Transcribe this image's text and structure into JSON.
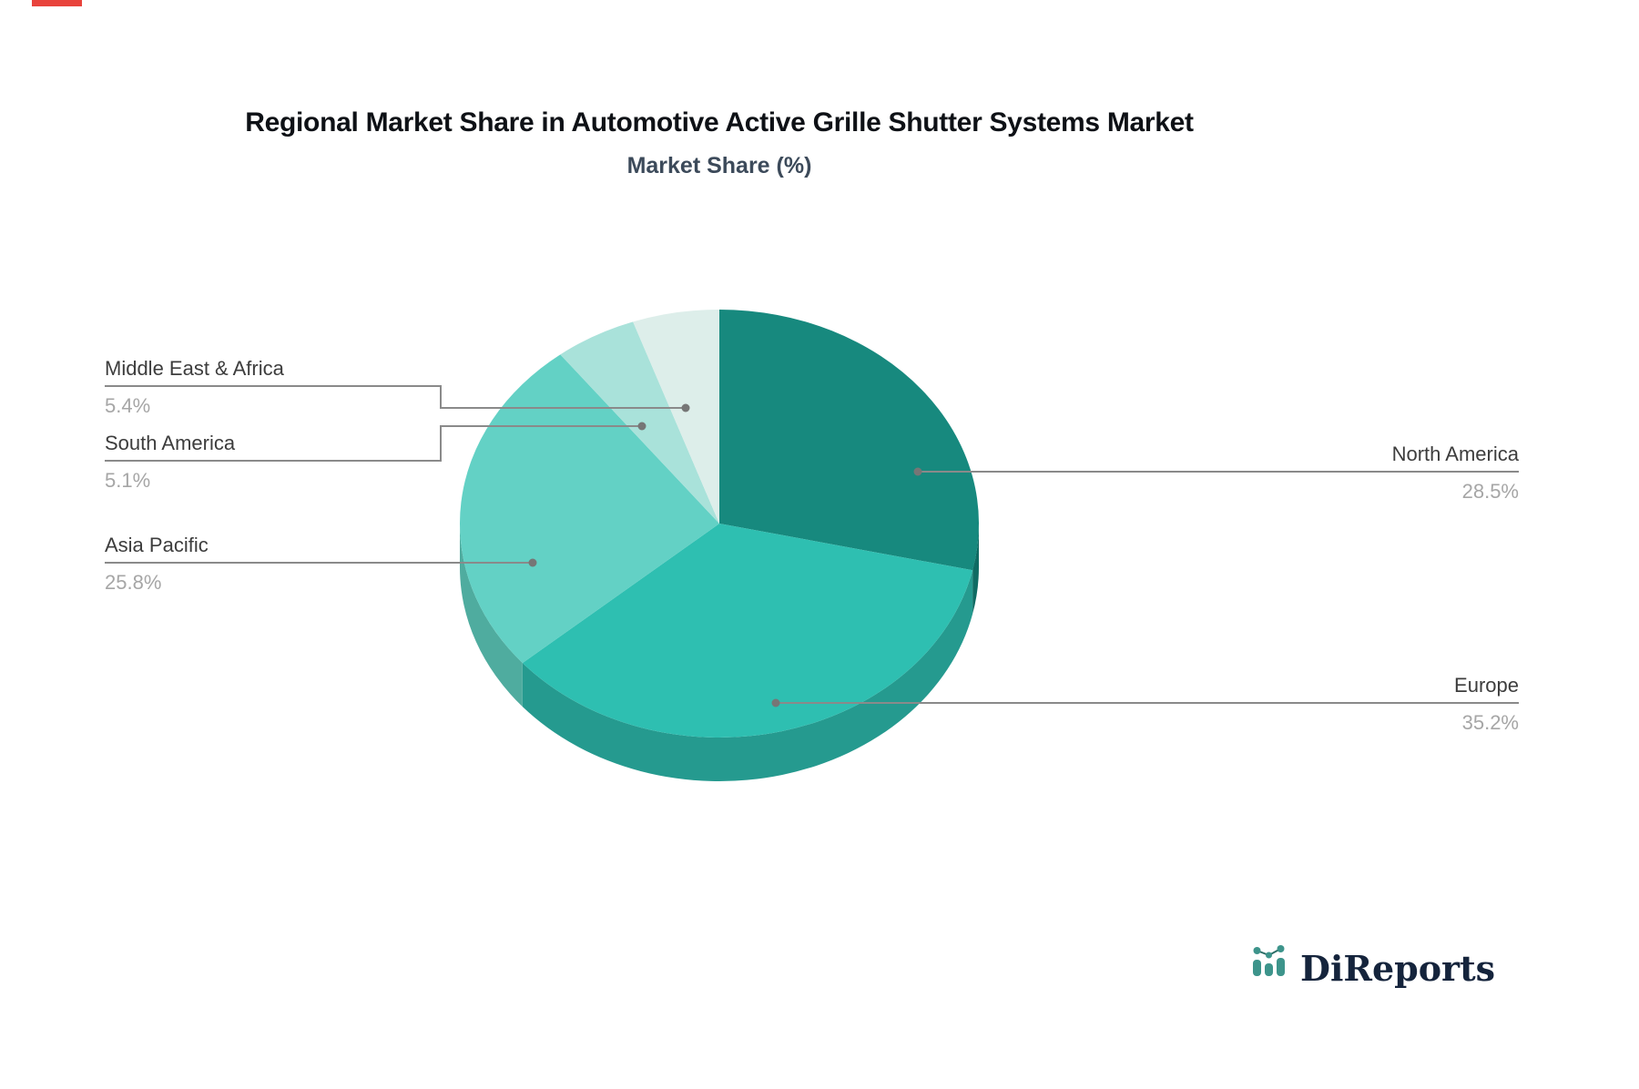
{
  "page": {
    "background": "#FFFFFF"
  },
  "chart_data": {
    "type": "pie",
    "style": "3d-pie",
    "title": "Regional Market Share in Automotive Active Grille Shutter Systems Market",
    "subtitle": "Market Share (%)",
    "unit": "%",
    "start_angle_deg": 0,
    "direction": "clockwise",
    "legend_position": "callout-labels",
    "slices": [
      {
        "label": "North America",
        "value": 28.5,
        "display": "28.5%",
        "color": "#17897E",
        "side_color": "#0F6B63"
      },
      {
        "label": "Europe",
        "value": 35.2,
        "display": "35.2%",
        "color": "#2EBFB1",
        "side_color": "#259A8F"
      },
      {
        "label": "Asia Pacific",
        "value": 25.8,
        "display": "25.8%",
        "color": "#63D1C5",
        "side_color": "#4FAC9F"
      },
      {
        "label": "South America",
        "value": 5.1,
        "display": "5.1%",
        "color": "#A9E2DA",
        "side_color": "#8FCFC6"
      },
      {
        "label": "Middle East & Africa",
        "value": 5.4,
        "display": "5.4%",
        "color": "#DDEEEA",
        "side_color": "#C2DCD7"
      }
    ],
    "leader_line_color": "#8A8A8A",
    "leader_dot_color": "#767676",
    "label_color": "#3D3D3D",
    "value_color": "#A6A6A6"
  },
  "branding": {
    "logo_text": "DiReports",
    "logo_icon": "bar-line-chart-icon",
    "logo_text_color": "#15243C",
    "logo_icon_color": "#3D948B"
  }
}
